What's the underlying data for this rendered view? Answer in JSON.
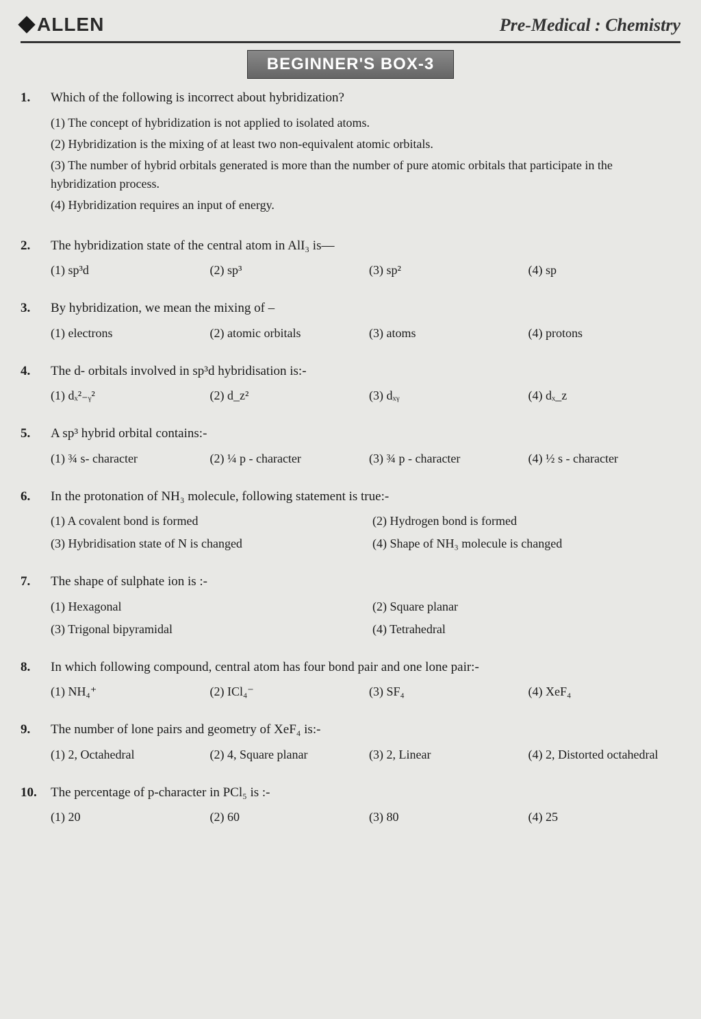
{
  "header": {
    "brand": "ALLEN",
    "subject": "Pre-Medical : Chemistry",
    "box_title": "BEGINNER'S BOX-3"
  },
  "questions": [
    {
      "num": "1.",
      "text": "Which of the following is incorrect about hybridization?",
      "layout": "col",
      "options": [
        "(1) The concept of hybridization is not applied to isolated atoms.",
        "(2) Hybridization is the mixing of at least two non-equivalent atomic orbitals.",
        "(3) The number of hybrid orbitals generated is more than the number of pure atomic orbitals that participate in the hybridization process.",
        "(4) Hybridization requires an input of energy."
      ]
    },
    {
      "num": "2.",
      "text": "The hybridization state of the central atom in AlI₃ is—",
      "layout": "row",
      "options": [
        "(1) sp³d",
        "(2) sp³",
        "(3) sp²",
        "(4) sp"
      ]
    },
    {
      "num": "3.",
      "text": "By hybridization, we mean the mixing of –",
      "layout": "row",
      "options": [
        "(1) electrons",
        "(2) atomic orbitals",
        "(3) atoms",
        "(4) protons"
      ]
    },
    {
      "num": "4.",
      "text": "The d- orbitals involved in sp³d hybridisation is:-",
      "layout": "row",
      "options": [
        "(1) dₓ²₋ᵧ²",
        "(2) d_z²",
        "(3) dₓᵧ",
        "(4) dₓ_z"
      ]
    },
    {
      "num": "5.",
      "text": "A sp³ hybrid orbital contains:-",
      "layout": "row",
      "options": [
        "(1) ¾ s- character",
        "(2) ¼ p - character",
        "(3) ¾ p - character",
        "(4) ½ s - character"
      ]
    },
    {
      "num": "6.",
      "text": "In the protonation of NH₃ molecule, following statement is true:-",
      "layout": "2x2",
      "options": [
        "(1) A covalent bond is formed",
        "(2) Hydrogen bond is formed",
        "(3) Hybridisation state of N is changed",
        "(4) Shape of NH₃ molecule is changed"
      ]
    },
    {
      "num": "7.",
      "text": "The shape of sulphate ion is :-",
      "layout": "2x2",
      "options": [
        "(1) Hexagonal",
        "(2) Square planar",
        "(3) Trigonal bipyramidal",
        "(4) Tetrahedral"
      ]
    },
    {
      "num": "8.",
      "text": "In which following compound, central atom has four bond pair and one lone pair:-",
      "layout": "row",
      "options": [
        "(1) NH₄⁺",
        "(2) ICl₄⁻",
        "(3) SF₄",
        "(4) XeF₄"
      ]
    },
    {
      "num": "9.",
      "text": "The number of lone pairs and geometry of XeF₄ is:-",
      "layout": "row",
      "options": [
        "(1) 2, Octahedral",
        "(2) 4, Square planar",
        "(3) 2, Linear",
        "(4) 2, Distorted octahedral"
      ]
    },
    {
      "num": "10.",
      "text": "The percentage of p-character in PCl₅ is :-",
      "layout": "row",
      "options": [
        "(1) 20",
        "(2) 60",
        "(3) 80",
        "(4) 25"
      ]
    }
  ]
}
